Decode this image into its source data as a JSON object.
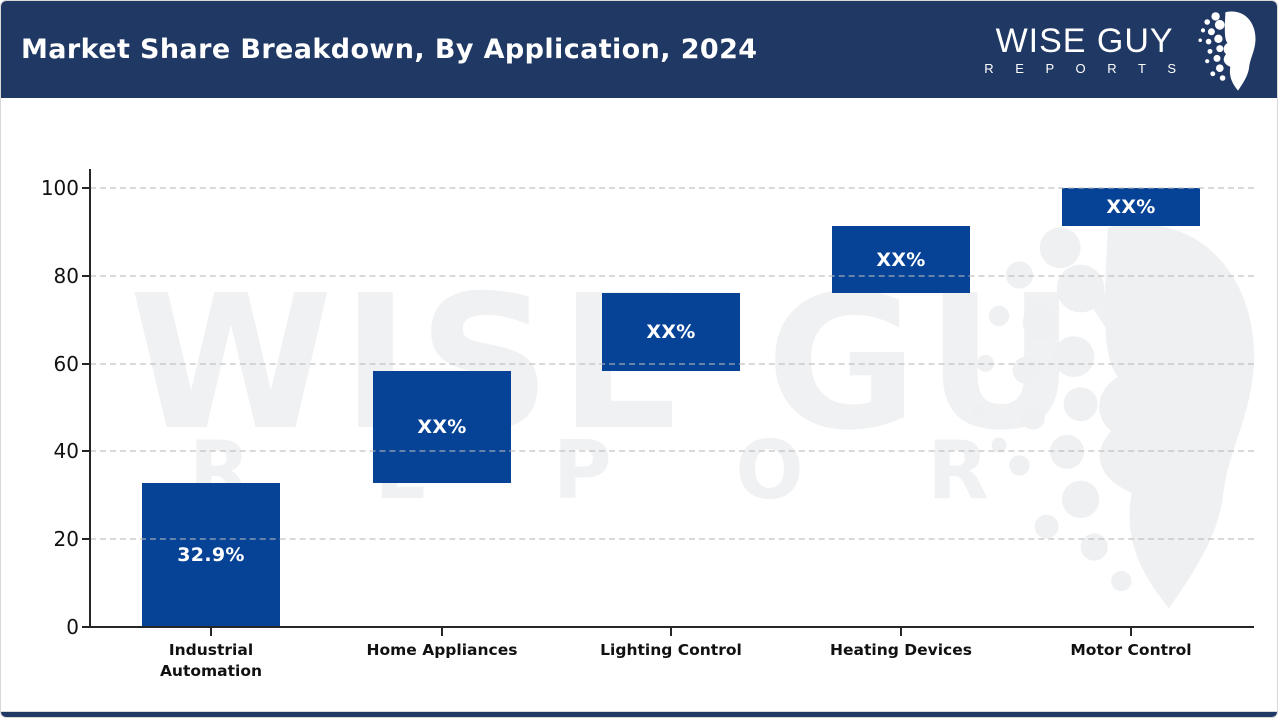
{
  "header": {
    "title": "Market Share Breakdown, By Application, 2024",
    "logo": {
      "line1": "WISE GUY",
      "line2": "R E P O R T S"
    },
    "bg_color": "#203864",
    "text_color": "#ffffff"
  },
  "watermark": {
    "line1": "WISE GUY",
    "line2": "R E P O R T S"
  },
  "chart_data": {
    "type": "bar",
    "variant": "waterfall",
    "title": "Market Share Breakdown, By Application, 2024",
    "categories": [
      "Industrial Automation",
      "Home Appliances",
      "Lighting Control",
      "Heating Devices",
      "Motor Control"
    ],
    "tick_labels": [
      "Industrial\nAutomation",
      "Home Appliances",
      "Lighting Control",
      "Heating Devices",
      "Motor Control"
    ],
    "segments": [
      {
        "category": "Industrial Automation",
        "start": 0,
        "end": 32.9,
        "value": 32.9,
        "label": "32.9%"
      },
      {
        "category": "Home Appliances",
        "start": 32.9,
        "end": 58.3,
        "value": 25.4,
        "label": "XX%"
      },
      {
        "category": "Lighting Control",
        "start": 58.3,
        "end": 76.1,
        "value": 17.8,
        "label": "XX%"
      },
      {
        "category": "Heating Devices",
        "start": 76.1,
        "end": 91.3,
        "value": 15.2,
        "label": "XX%"
      },
      {
        "category": "Motor Control",
        "start": 91.3,
        "end": 100,
        "value": 8.7,
        "label": "XX%"
      }
    ],
    "ylim": [
      0,
      100
    ],
    "yticks": [
      0,
      20,
      40,
      60,
      80,
      100
    ],
    "xlabel": "",
    "ylabel": "",
    "grid": "horizontal-dashed",
    "legend": "none",
    "bar_color": "#064296",
    "bar_label_color": "#ffffff",
    "axis_color": "#262626"
  }
}
